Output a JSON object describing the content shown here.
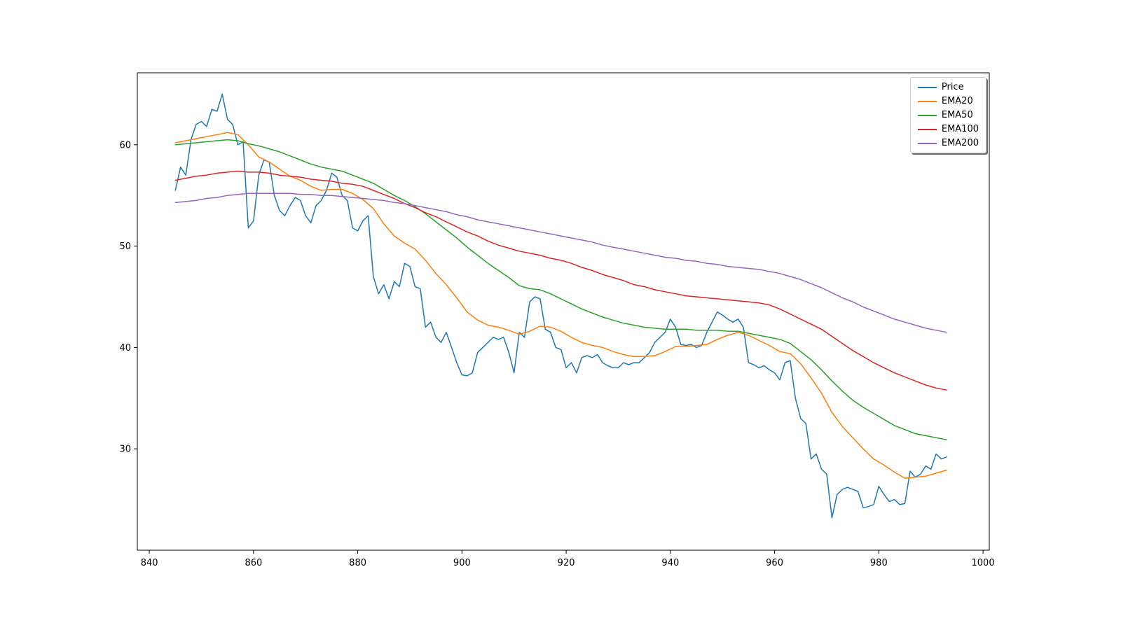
{
  "figure": {
    "background": "#ffffff"
  },
  "chart_data": {
    "type": "line",
    "title": "",
    "xlabel": "",
    "ylabel": "",
    "xlim": [
      837.7,
      1001.2
    ],
    "ylim": [
      20.0,
      67.1
    ],
    "xticks": [
      840,
      860,
      880,
      900,
      920,
      940,
      960,
      980,
      1000
    ],
    "yticks": [
      30,
      40,
      50,
      60
    ],
    "grid": false,
    "legend": {
      "location": "upper-right",
      "shadow": true,
      "entries": [
        "Price",
        "EMA20",
        "EMA50",
        "EMA100",
        "EMA200"
      ]
    },
    "series": [
      {
        "name": "Price",
        "color": "#1f77b4",
        "x_range": [
          845,
          993,
          1
        ],
        "y": [
          55.5,
          57.8,
          57.0,
          60.5,
          62.0,
          62.3,
          61.8,
          63.5,
          63.3,
          65.0,
          62.5,
          62.0,
          60.0,
          60.3,
          51.8,
          52.5,
          57.0,
          58.5,
          58.3,
          55.0,
          53.5,
          53.0,
          54.0,
          54.8,
          54.5,
          53.0,
          52.3,
          54.0,
          54.5,
          55.5,
          57.2,
          56.8,
          55.0,
          54.5,
          51.8,
          51.5,
          52.5,
          53.0,
          47.0,
          45.3,
          46.2,
          44.8,
          46.5,
          46.0,
          48.3,
          48.0,
          46.0,
          45.8,
          42.0,
          42.5,
          41.0,
          40.5,
          41.5,
          40.0,
          38.5,
          37.3,
          37.2,
          37.5,
          39.5,
          40.0,
          40.5,
          41.0,
          40.8,
          41.0,
          39.5,
          37.5,
          41.5,
          41.0,
          44.5,
          45.0,
          44.8,
          41.8,
          41.5,
          40.0,
          39.8,
          38.0,
          38.5,
          37.5,
          39.0,
          39.2,
          39.0,
          39.3,
          38.5,
          38.2,
          38.0,
          38.0,
          38.5,
          38.3,
          38.5,
          38.5,
          39.0,
          39.5,
          40.5,
          41.0,
          41.5,
          42.8,
          42.0,
          40.3,
          40.2,
          40.3,
          40.0,
          40.2,
          41.5,
          42.5,
          43.5,
          43.2,
          42.8,
          42.5,
          42.8,
          42.0,
          38.5,
          38.3,
          38.0,
          38.2,
          37.8,
          37.5,
          36.8,
          38.5,
          38.7,
          35.0,
          33.0,
          32.5,
          29.0,
          29.5,
          28.0,
          27.5,
          23.2,
          25.5,
          26.0,
          26.2,
          26.0,
          25.8,
          24.2,
          24.3,
          24.5,
          26.3,
          25.5,
          24.8,
          25.0,
          24.5,
          24.6,
          27.8,
          27.2,
          27.5,
          28.3,
          28.0,
          29.5,
          29.0,
          29.2
        ]
      },
      {
        "name": "EMA20",
        "color": "#ff7f0e",
        "x_range": [
          845,
          993,
          2
        ],
        "y": [
          60.2,
          60.4,
          60.6,
          60.8,
          61.0,
          61.2,
          61.0,
          60.0,
          58.8,
          58.3,
          57.6,
          56.9,
          56.5,
          55.9,
          55.5,
          55.6,
          55.6,
          55.2,
          54.6,
          53.7,
          52.2,
          51.0,
          50.3,
          49.7,
          48.6,
          47.3,
          46.2,
          44.9,
          43.5,
          42.7,
          42.2,
          42.0,
          41.7,
          41.3,
          41.6,
          42.1,
          42.0,
          41.6,
          41.0,
          40.5,
          40.2,
          40.0,
          39.6,
          39.3,
          39.1,
          39.1,
          39.2,
          39.6,
          40.1,
          40.1,
          40.2,
          40.3,
          40.8,
          41.2,
          41.5,
          41.2,
          40.7,
          40.2,
          39.6,
          39.4,
          38.4,
          37.0,
          35.5,
          33.6,
          32.2,
          31.1,
          30.0,
          29.0,
          28.4,
          27.7,
          27.1,
          27.2,
          27.3,
          27.6,
          27.9
        ]
      },
      {
        "name": "EMA50",
        "color": "#2ca02c",
        "x_range": [
          845,
          993,
          2
        ],
        "y": [
          60.0,
          60.1,
          60.2,
          60.3,
          60.4,
          60.5,
          60.4,
          60.1,
          59.9,
          59.6,
          59.3,
          58.9,
          58.5,
          58.1,
          57.8,
          57.6,
          57.4,
          57.0,
          56.6,
          56.2,
          55.6,
          55.0,
          54.5,
          53.9,
          53.2,
          52.4,
          51.6,
          50.8,
          49.9,
          49.1,
          48.3,
          47.6,
          46.9,
          46.1,
          45.8,
          45.7,
          45.3,
          44.8,
          44.3,
          43.8,
          43.4,
          43.0,
          42.7,
          42.4,
          42.2,
          42.0,
          41.9,
          41.8,
          41.8,
          41.8,
          41.7,
          41.7,
          41.7,
          41.6,
          41.6,
          41.4,
          41.2,
          41.0,
          40.8,
          40.4,
          39.6,
          38.8,
          37.8,
          36.7,
          35.7,
          34.8,
          34.1,
          33.5,
          32.9,
          32.3,
          31.9,
          31.5,
          31.3,
          31.1,
          30.9
        ]
      },
      {
        "name": "EMA100",
        "color": "#d62728",
        "x_range": [
          845,
          993,
          2
        ],
        "y": [
          56.5,
          56.7,
          56.9,
          57.0,
          57.2,
          57.3,
          57.4,
          57.3,
          57.3,
          57.2,
          57.0,
          56.9,
          56.8,
          56.6,
          56.5,
          56.4,
          56.2,
          56.1,
          55.9,
          55.5,
          55.1,
          54.7,
          54.2,
          53.8,
          53.3,
          52.9,
          52.4,
          51.9,
          51.4,
          51.0,
          50.5,
          50.1,
          49.8,
          49.5,
          49.3,
          49.1,
          48.8,
          48.6,
          48.3,
          47.9,
          47.6,
          47.2,
          46.9,
          46.6,
          46.2,
          46.0,
          45.7,
          45.5,
          45.3,
          45.1,
          45.0,
          44.9,
          44.8,
          44.7,
          44.6,
          44.5,
          44.4,
          44.2,
          43.8,
          43.3,
          42.8,
          42.3,
          41.8,
          41.1,
          40.4,
          39.7,
          39.1,
          38.5,
          38.0,
          37.5,
          37.1,
          36.7,
          36.3,
          36.0,
          35.8
        ]
      },
      {
        "name": "EMA200",
        "color": "#9467bd",
        "x_range": [
          845,
          993,
          2
        ],
        "y": [
          54.3,
          54.4,
          54.5,
          54.7,
          54.8,
          55.0,
          55.1,
          55.2,
          55.2,
          55.2,
          55.2,
          55.2,
          55.1,
          55.1,
          55.0,
          55.0,
          54.9,
          54.8,
          54.7,
          54.6,
          54.5,
          54.3,
          54.2,
          54.0,
          53.8,
          53.6,
          53.4,
          53.1,
          52.9,
          52.6,
          52.4,
          52.2,
          52.0,
          51.8,
          51.6,
          51.4,
          51.2,
          51.0,
          50.8,
          50.6,
          50.4,
          50.1,
          49.9,
          49.7,
          49.5,
          49.3,
          49.1,
          48.9,
          48.8,
          48.6,
          48.5,
          48.3,
          48.2,
          48.0,
          47.9,
          47.8,
          47.7,
          47.5,
          47.3,
          47.0,
          46.7,
          46.3,
          45.9,
          45.4,
          44.9,
          44.5,
          44.0,
          43.6,
          43.2,
          42.8,
          42.5,
          42.2,
          41.9,
          41.7,
          41.5
        ]
      }
    ]
  }
}
